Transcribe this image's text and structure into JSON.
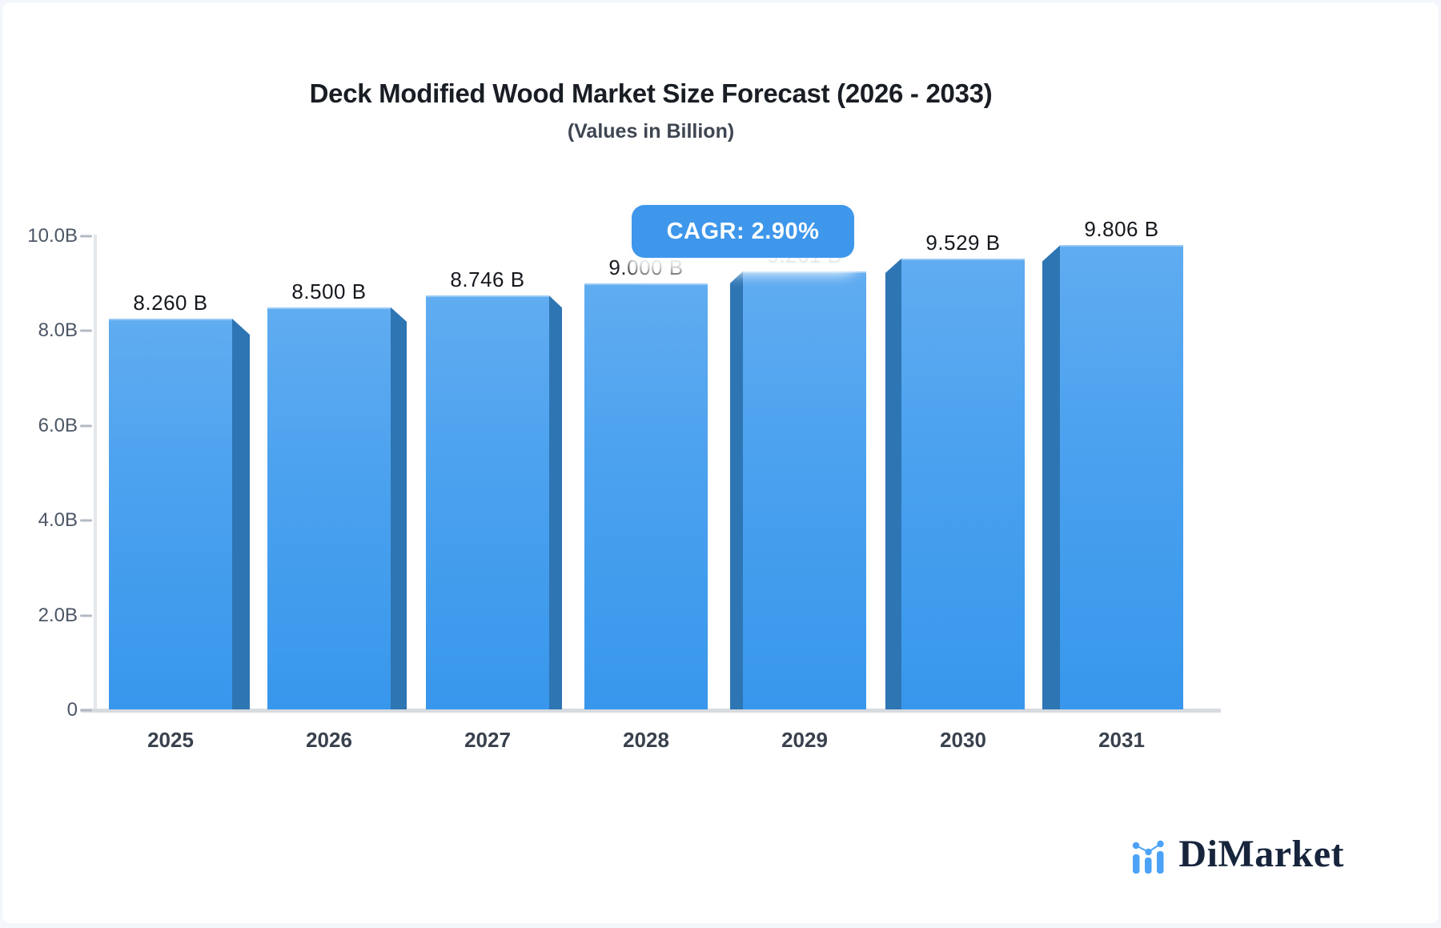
{
  "header": {
    "title": "Deck Modified Wood Market Size Forecast (2026 - 2033)",
    "subtitle": "(Values in Billion)"
  },
  "badge": {
    "label": "CAGR: 2.90%"
  },
  "chart_data": {
    "type": "bar",
    "title": "Deck Modified Wood Market Size Forecast (2026 - 2033)",
    "subtitle": "(Values in Billion)",
    "categories": [
      "2025",
      "2026",
      "2027",
      "2028",
      "2029",
      "2030",
      "2031"
    ],
    "values": [
      8.26,
      8.5,
      8.746,
      9.0,
      9.261,
      9.529,
      9.806
    ],
    "bar_labels": [
      "8.260 B",
      "8.500 B",
      "8.746 B",
      "9.000 B",
      "9.261 B",
      "9.529 B",
      "9.806 B"
    ],
    "cagr_annotation": "CAGR: 2.90%",
    "xlabel": "",
    "ylabel": "",
    "ylim": [
      0,
      10
    ],
    "y_ticks": [
      {
        "label": "10.0B",
        "value": 10
      },
      {
        "label": "8.0B",
        "value": 8
      },
      {
        "label": "6.0B",
        "value": 6
      },
      {
        "label": "4.0B",
        "value": 4
      },
      {
        "label": "2.0B",
        "value": 2
      },
      {
        "label": "0",
        "value": 0
      }
    ],
    "grid": "off",
    "legend": "none",
    "colors": {
      "bar_face_top": "#60acf1",
      "bar_face_bottom": "#3897ec",
      "bar_side": "#2e75b4",
      "badge_background": "#3e97eb",
      "badge_text": "#ffffff"
    }
  },
  "logo": {
    "text": "DiMarket",
    "icon": "bar-chart-logo-icon",
    "text_color": "#17253c",
    "icon_color": "#4ba2f7"
  }
}
